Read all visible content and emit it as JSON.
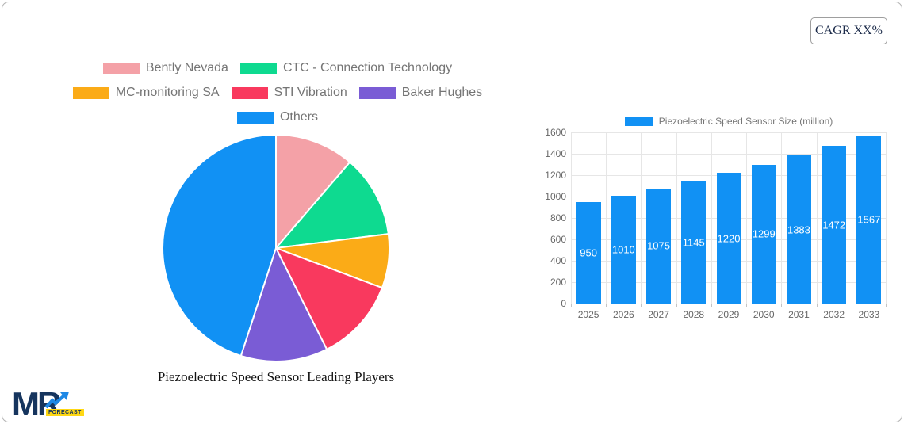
{
  "cagr_button_label": "CAGR XX%",
  "logo": {
    "text": "MR",
    "badge": "FORECAST",
    "colors": {
      "navy": "#16355e",
      "blue": "#1e88e5",
      "yellow": "#ffd814"
    }
  },
  "chart_data": [
    {
      "type": "pie",
      "title": "Piezoelectric Speed Sensor Leading Players",
      "labels": [
        "Bently Nevada",
        "CTC - Connection Technology",
        "MC-monitoring SA",
        "STI Vibration",
        "Baker Hughes",
        "Others"
      ],
      "values": [
        11.3,
        11.7,
        7.7,
        11.9,
        12.4,
        45.0
      ],
      "values_note": "estimated share percent read from slice angles; no numeric labels shown in chart",
      "colors": [
        "#f4a1a7",
        "#0eda90",
        "#fbab17",
        "#f9395e",
        "#7a5cd5",
        "#1191f4"
      ],
      "legend_rows": [
        [
          0,
          1
        ],
        [
          2,
          3,
          4
        ],
        [
          5
        ]
      ],
      "legend_position": "top",
      "start_angle_deg": 0,
      "direction": "clockwise"
    },
    {
      "type": "bar",
      "legend_label": "Piezoelectric Speed Sensor Size (million)",
      "categories": [
        "2025",
        "2026",
        "2027",
        "2028",
        "2029",
        "2030",
        "2031",
        "2032",
        "2033"
      ],
      "values": [
        950,
        1010,
        1075,
        1145,
        1220,
        1299,
        1383,
        1472,
        1567
      ],
      "ylim": [
        0,
        1600
      ],
      "ytick_step": 200,
      "bar_color": "#1191f4",
      "value_label_color": "#ffffff",
      "grid": true,
      "legend_position": "top",
      "xlabel": "",
      "ylabel": ""
    }
  ]
}
